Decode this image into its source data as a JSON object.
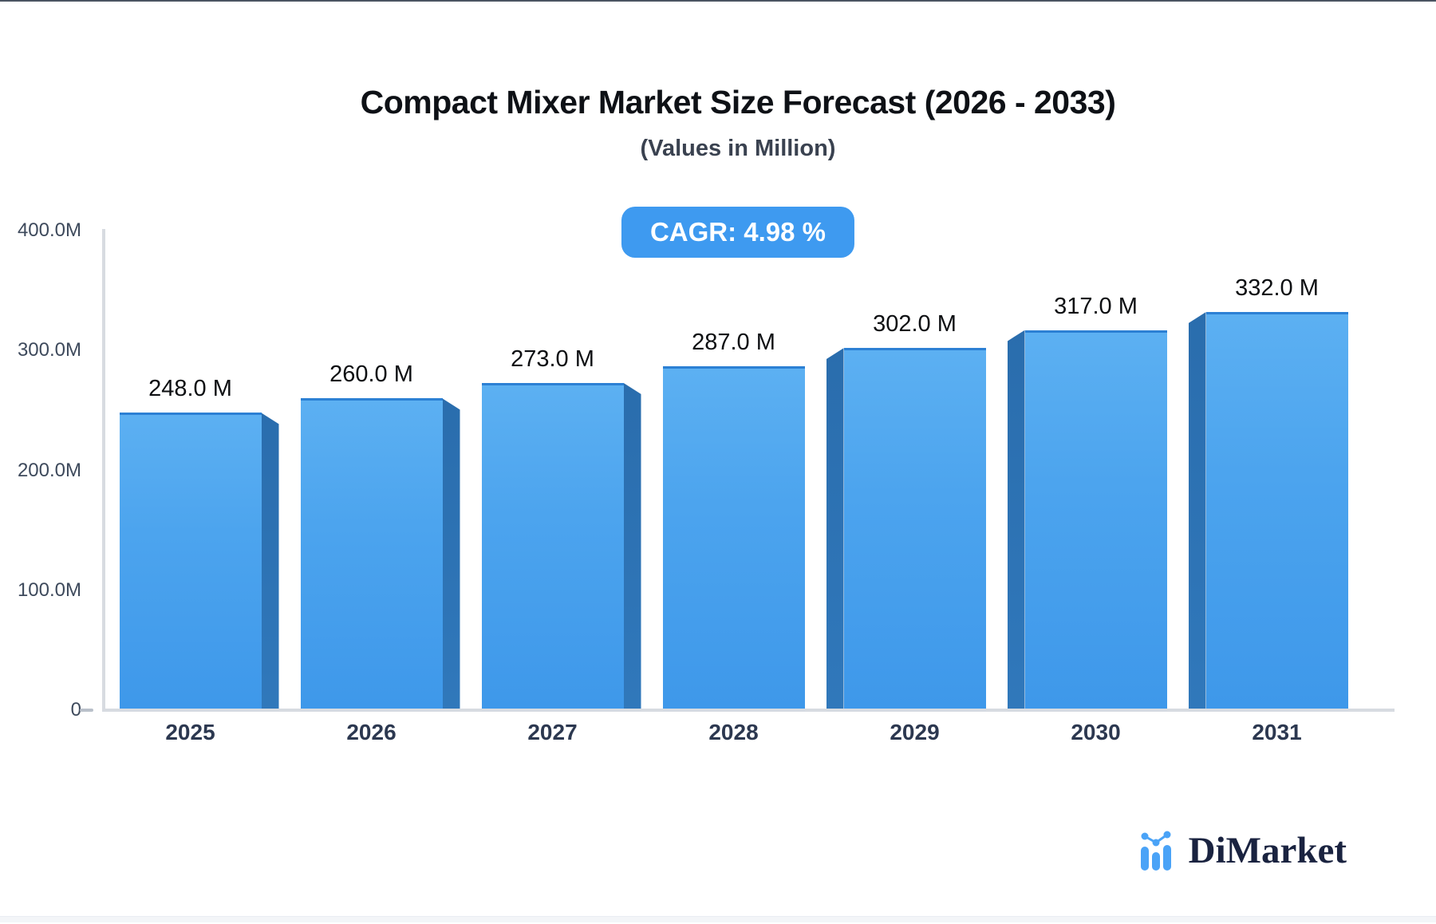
{
  "header": {
    "title": "Compact Mixer Market Size Forecast (2026 - 2033)",
    "subtitle": "(Values in Million)",
    "cagr_label": "CAGR: 4.98 %"
  },
  "chart_data": {
    "type": "bar",
    "title": "Compact Mixer Market Size Forecast (2026 - 2033)",
    "subtitle": "(Values in Million)",
    "unit": "Million",
    "cagr_percent": 4.98,
    "categories": [
      "2025",
      "2026",
      "2027",
      "2028",
      "2029",
      "2030",
      "2031"
    ],
    "values": [
      248.0,
      260.0,
      273.0,
      287.0,
      302.0,
      317.0,
      332.0
    ],
    "value_labels": [
      "248.0 M",
      "260.0 M",
      "273.0 M",
      "287.0 M",
      "302.0 M",
      "317.0 M",
      "332.0 M"
    ],
    "xlabel": "",
    "ylabel": "",
    "ylim": [
      0,
      400
    ],
    "yticks": [
      {
        "value": 400,
        "label": "400.0M"
      },
      {
        "value": 300,
        "label": "300.0M"
      },
      {
        "value": 200,
        "label": "200.0M"
      },
      {
        "value": 100,
        "label": "100.0M"
      },
      {
        "value": 0,
        "label": "0"
      }
    ],
    "grid": false,
    "legend": null,
    "bar_style": {
      "front_top": "#5cb0f2",
      "front_bottom": "#3e98ea",
      "top_edge": "#2c80d4",
      "side_face": "#2e74b6",
      "effect": "3d-perspective"
    }
  },
  "colors": {
    "badge_bg": "#3E9AF0",
    "badge_text": "#ffffff",
    "axis_line": "#d7dbe1",
    "tick_text": "#3e4a5c",
    "xlabel_text": "#2c3850",
    "value_text": "#0d0f12",
    "logo_blue": "#4aa3f7",
    "logo_text": "#1a2340"
  },
  "footer": {
    "brand": "DiMarket"
  }
}
